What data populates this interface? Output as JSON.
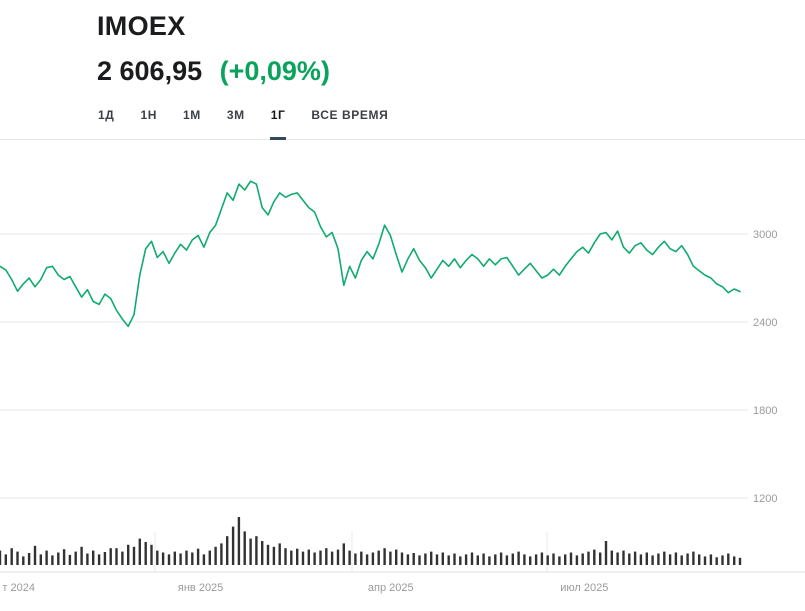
{
  "header": {
    "title": "IMOEX",
    "price": "2 606,95",
    "change": "(+0,09%)"
  },
  "tabs": [
    {
      "label": "1Д",
      "active": false
    },
    {
      "label": "1Н",
      "active": false
    },
    {
      "label": "1М",
      "active": false
    },
    {
      "label": "3М",
      "active": false
    },
    {
      "label": "1Г",
      "active": true
    },
    {
      "label": "ВСЕ ВРЕМЯ",
      "active": false
    }
  ],
  "colors": {
    "green_change": "#0aa35c",
    "line_green": "#10ab6e",
    "dark_text": "#1b1c1e",
    "muted_text": "#9b9b9b",
    "grid": "#e9e9e9",
    "axis": "#e0e0e0",
    "volume": "#323232",
    "tab_underline": "#334a5e",
    "divider": "#e6e6e6"
  },
  "chart_data": {
    "type": "line",
    "title": "IMOEX",
    "xlabel": "",
    "ylabel": "",
    "grid": true,
    "legend": false,
    "ylim": [
      1200,
      3600
    ],
    "y_ticks": [
      3000,
      2400,
      1800,
      1200
    ],
    "x_tick_labels": [
      "т 2024",
      "янв 2025",
      "апр 2025",
      "июл 2025"
    ],
    "x_tick_positions": [
      0.003,
      0.221,
      0.457,
      0.696
    ],
    "x_separator_positions": [
      0.1925,
      0.4373,
      0.6795
    ],
    "series": [
      {
        "name": "IMOEX",
        "values": [
          2780,
          2755,
          2690,
          2610,
          2660,
          2700,
          2640,
          2690,
          2770,
          2780,
          2720,
          2690,
          2710,
          2640,
          2570,
          2620,
          2540,
          2520,
          2590,
          2560,
          2480,
          2420,
          2370,
          2450,
          2720,
          2900,
          2950,
          2840,
          2880,
          2800,
          2870,
          2930,
          2890,
          2960,
          2990,
          2910,
          3010,
          3060,
          3170,
          3280,
          3230,
          3340,
          3300,
          3360,
          3340,
          3180,
          3130,
          3220,
          3280,
          3250,
          3270,
          3280,
          3230,
          3180,
          3150,
          3050,
          2980,
          3010,
          2900,
          2650,
          2780,
          2700,
          2820,
          2880,
          2830,
          2930,
          3060,
          2990,
          2860,
          2740,
          2830,
          2900,
          2820,
          2770,
          2700,
          2760,
          2820,
          2780,
          2830,
          2770,
          2820,
          2860,
          2830,
          2780,
          2830,
          2790,
          2830,
          2840,
          2780,
          2720,
          2760,
          2800,
          2750,
          2700,
          2720,
          2760,
          2720,
          2780,
          2830,
          2880,
          2910,
          2870,
          2940,
          3000,
          3010,
          2960,
          3020,
          2910,
          2870,
          2920,
          2940,
          2890,
          2860,
          2910,
          2950,
          2900,
          2880,
          2920,
          2860,
          2780,
          2750,
          2720,
          2700,
          2660,
          2640,
          2600,
          2625,
          2607
        ]
      }
    ],
    "volume_relative": [
      0.3,
      0.22,
      0.35,
      0.28,
      0.18,
      0.25,
      0.4,
      0.22,
      0.3,
      0.2,
      0.26,
      0.33,
      0.21,
      0.28,
      0.38,
      0.24,
      0.3,
      0.22,
      0.27,
      0.35,
      0.35,
      0.28,
      0.42,
      0.38,
      0.55,
      0.48,
      0.42,
      0.3,
      0.26,
      0.22,
      0.28,
      0.24,
      0.3,
      0.26,
      0.34,
      0.22,
      0.3,
      0.38,
      0.45,
      0.6,
      0.8,
      1.0,
      0.7,
      0.55,
      0.6,
      0.5,
      0.42,
      0.38,
      0.45,
      0.35,
      0.3,
      0.34,
      0.28,
      0.32,
      0.26,
      0.3,
      0.35,
      0.28,
      0.32,
      0.45,
      0.3,
      0.24,
      0.28,
      0.22,
      0.26,
      0.3,
      0.35,
      0.28,
      0.32,
      0.26,
      0.22,
      0.25,
      0.2,
      0.24,
      0.28,
      0.22,
      0.26,
      0.2,
      0.24,
      0.18,
      0.22,
      0.26,
      0.2,
      0.24,
      0.18,
      0.22,
      0.26,
      0.2,
      0.24,
      0.28,
      0.22,
      0.18,
      0.22,
      0.26,
      0.2,
      0.24,
      0.18,
      0.22,
      0.26,
      0.2,
      0.24,
      0.28,
      0.32,
      0.26,
      0.5,
      0.3,
      0.26,
      0.3,
      0.24,
      0.28,
      0.22,
      0.26,
      0.2,
      0.24,
      0.28,
      0.22,
      0.26,
      0.2,
      0.24,
      0.28,
      0.22,
      0.18,
      0.22,
      0.16,
      0.2,
      0.24,
      0.18,
      0.15
    ]
  }
}
